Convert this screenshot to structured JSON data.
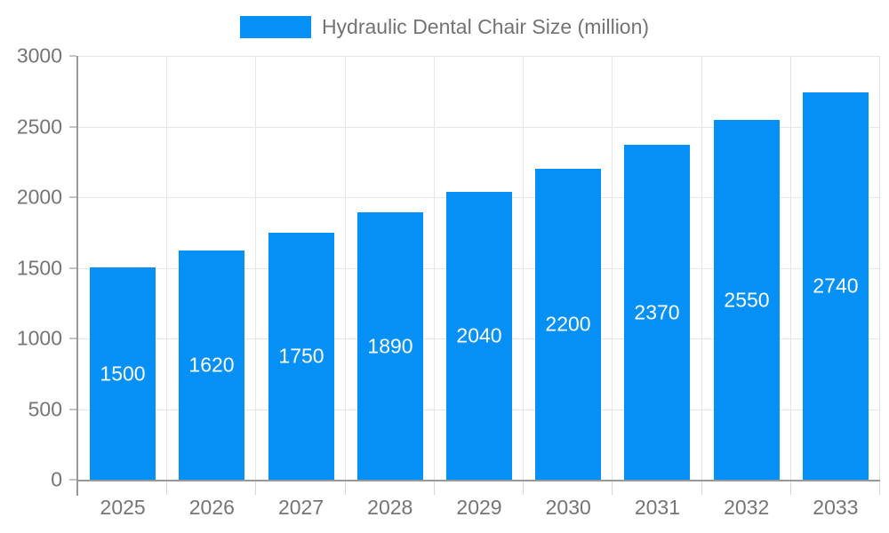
{
  "chart_data": {
    "type": "bar",
    "title": "Hydraulic Dental Chair Size (million)",
    "legend": "Hydraulic Dental Chair Size (million)",
    "legend_position": "top",
    "categories": [
      "2025",
      "2026",
      "2027",
      "2028",
      "2029",
      "2030",
      "2031",
      "2032",
      "2033"
    ],
    "values": [
      1500,
      1620,
      1750,
      1890,
      2040,
      2200,
      2370,
      2550,
      2740
    ],
    "xlabel": "",
    "ylabel": "",
    "ylim": [
      0,
      3000
    ],
    "yticks": [
      0,
      500,
      1000,
      1500,
      2000,
      2500,
      3000
    ],
    "grid": "both",
    "bar_color": "#0590F5",
    "bar_label_color": "#FFFFFF",
    "axis_text_color": "#757575",
    "grid_color": "#E6E6E6",
    "axis_line_color": "#999999"
  }
}
